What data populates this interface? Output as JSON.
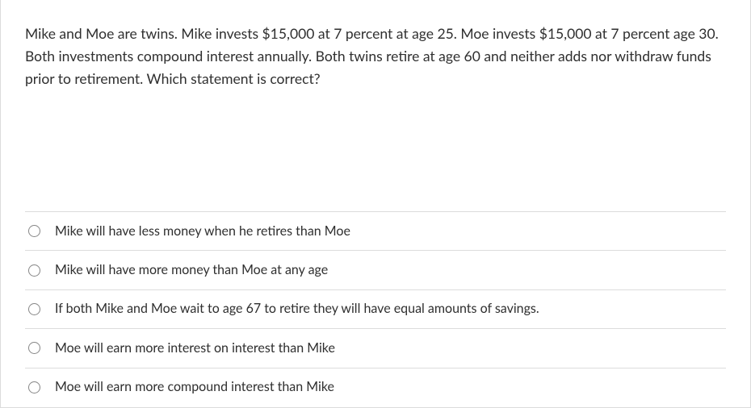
{
  "question": {
    "text": "Mike and Moe are twins. Mike invests $15,000 at 7 percent at age 25. Moe invests $15,000 at 7 percent age 30. Both investments compound interest annually. Both twins retire at age 60 and neither adds nor withdraw funds prior to retirement. Which statement is correct?"
  },
  "options": [
    {
      "label": "Mike will have less money when he retires than Moe"
    },
    {
      "label": "Mike will have more money than Moe at any age"
    },
    {
      "label": "If both Mike and Moe wait to age 67 to retire they will have equal amounts of savings."
    },
    {
      "label": "Moe will earn more interest on interest than Mike"
    },
    {
      "label": "Moe will earn more compound interest than Mike"
    }
  ],
  "styling": {
    "card_border_color": "#dcdcdc",
    "text_color": "#2f2f2f",
    "radio_border_color": "#868686",
    "background_color": "#ffffff",
    "question_fontsize": 17.5,
    "option_fontsize": 16,
    "divider_color": "#dcdcdc"
  }
}
